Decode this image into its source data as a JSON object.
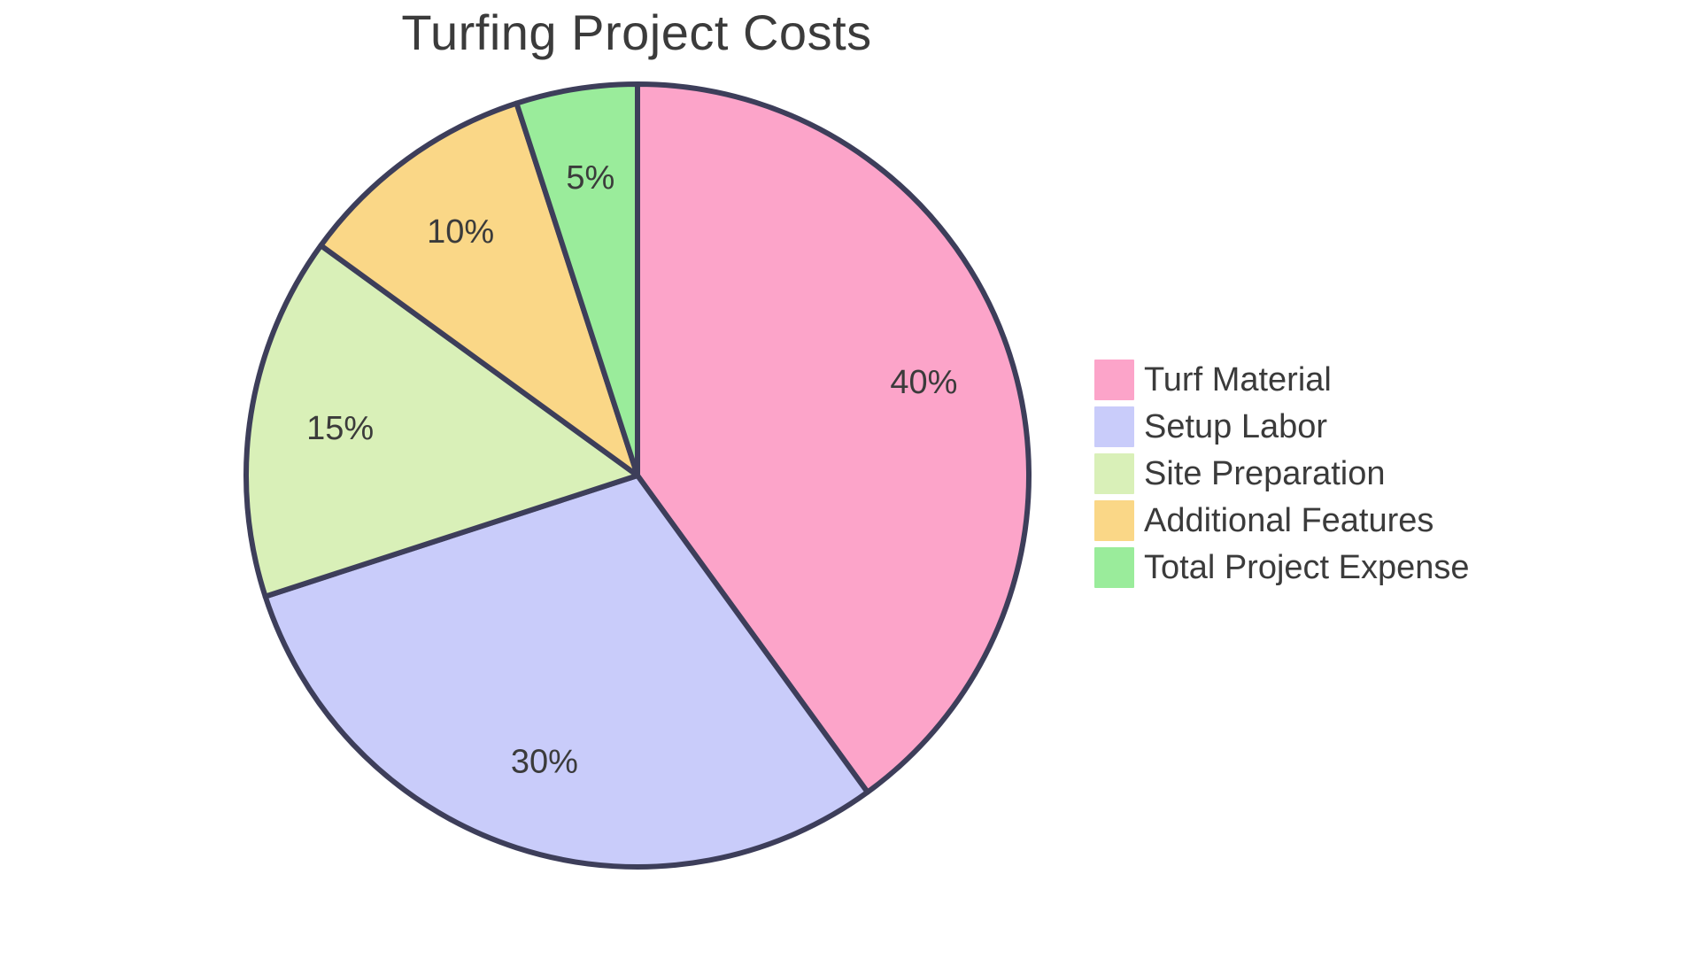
{
  "chart_data": {
    "type": "pie",
    "title": "Turfing Project Costs",
    "categories": [
      "Turf Material",
      "Setup Labor",
      "Site Preparation",
      "Additional Features",
      "Total Project Expense"
    ],
    "values": [
      40,
      30,
      15,
      10,
      5
    ],
    "labels": [
      "40%",
      "30%",
      "15%",
      "10%",
      "5%"
    ],
    "colors": [
      "#FCA4C9",
      "#C9CCFA",
      "#D9F0B8",
      "#FAD787",
      "#9AEC9B"
    ],
    "stroke_color": "#3D3E5A",
    "text_color": "#3B3B3B",
    "legend_position": "right",
    "start_angle_deg": 0,
    "direction": "clockwise"
  }
}
